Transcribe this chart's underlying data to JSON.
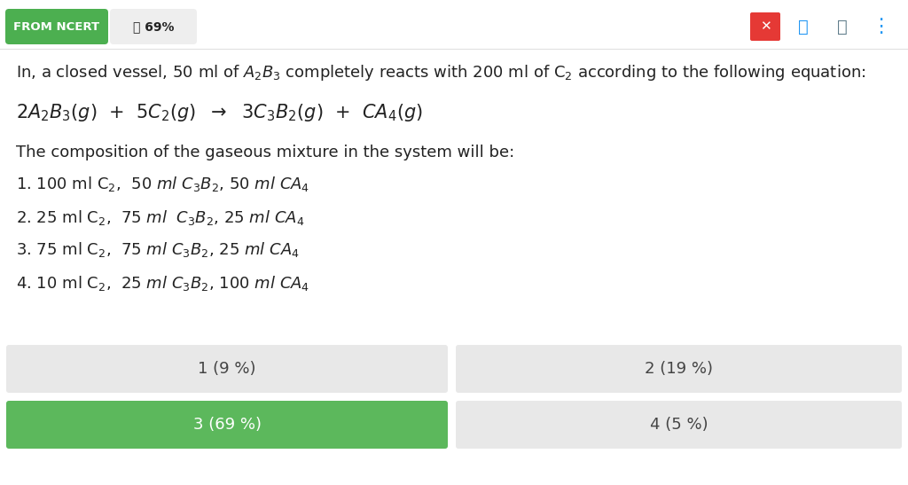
{
  "background_color": "#ffffff",
  "header_bg": "#4caf50",
  "header_text": "FROM NCERT",
  "header_text_color": "#ffffff",
  "like_bg": "#eeeeee",
  "like_text_color": "#222222",
  "text_color": "#222222",
  "poll_text_color": "#444444",
  "poll_colors": [
    "#e8e8e8",
    "#e8e8e8",
    "#5cb85c",
    "#e8e8e8"
  ],
  "poll_labels": [
    "1 (9 %)",
    "2 (19 %)",
    "3 (69 %)",
    "4 (5 %)"
  ],
  "fig_width": 10.24,
  "fig_height": 5.47
}
